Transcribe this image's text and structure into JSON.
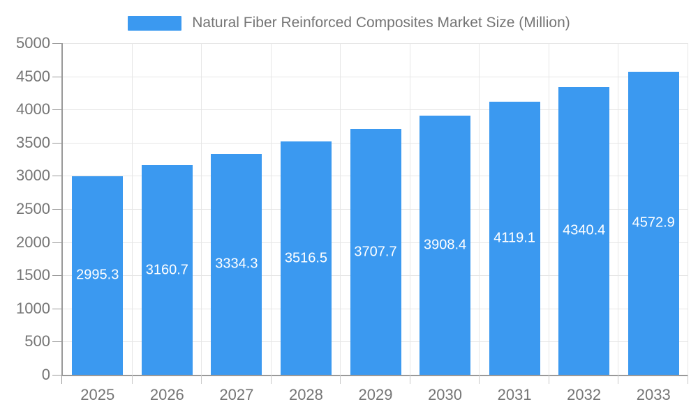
{
  "chart_data": {
    "type": "bar",
    "title": "Natural Fiber Reinforced Composites Market Size (Million)",
    "categories": [
      "2025",
      "2026",
      "2027",
      "2028",
      "2029",
      "2030",
      "2031",
      "2032",
      "2033"
    ],
    "values": [
      2995.3,
      3160.7,
      3334.3,
      3516.5,
      3707.7,
      3908.4,
      4119.1,
      4340.4,
      4572.9
    ],
    "xlabel": "",
    "ylabel": "",
    "ylim": [
      0,
      5000
    ],
    "ytick_step": 500,
    "grid": true,
    "legend_position": "top",
    "legend_label": "Natural Fiber Reinforced Composites Market Size (Million)",
    "value_labels_position": "inside-center",
    "colors": {
      "bar": "#3b99f0",
      "bar_value_text": "#ffffff",
      "axis_text": "#757575",
      "axis_line": "#999999",
      "gridline": "#e6e6e6",
      "x_tick": "#c9c9c9"
    }
  }
}
